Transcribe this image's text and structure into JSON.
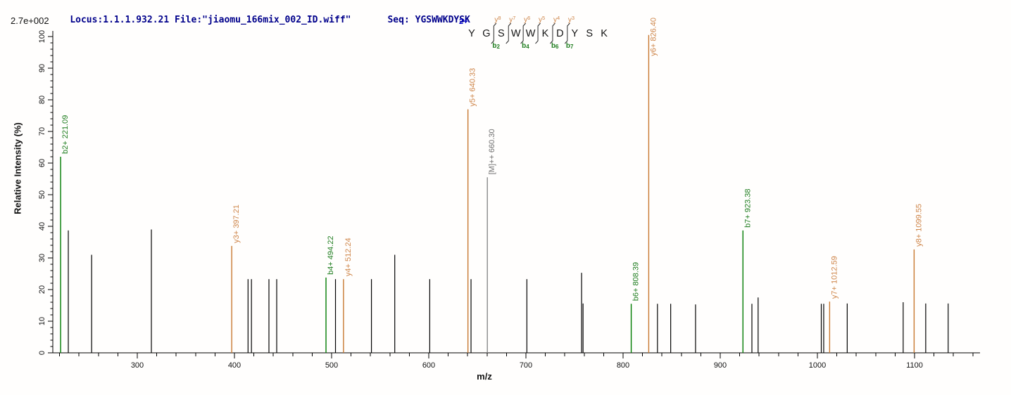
{
  "header": {
    "locus_file": "Locus:1.1.1.932.21 File:\"jiaomu_166mix_002_ID.wiff\"",
    "seq": "Seq: YGSWWKDYSK"
  },
  "annotation": {
    "charge": "2+",
    "sequence": "YGSWWKDYSK",
    "cleavages": [
      {
        "after": 1,
        "y": "y8",
        "b": "b2"
      },
      {
        "after": 2,
        "y": "y7"
      },
      {
        "after": 3,
        "y": "y6",
        "b": "b4"
      },
      {
        "after": 4,
        "y": "y5"
      },
      {
        "after": 5,
        "y": "y4",
        "b": "b6"
      },
      {
        "after": 6,
        "y": "y3",
        "b": "b7"
      }
    ]
  },
  "chart_data": {
    "type": "bar",
    "subtype": "ms2-fragmentation-spectrum",
    "title": "",
    "xlabel": "m/z",
    "ylabel": "Relative  Intensity (%)",
    "max_intensity_label": "2.7e+002",
    "xlim": [
      212,
      1166
    ],
    "ylim": [
      0,
      100
    ],
    "x_major_ticks": [
      300,
      400,
      500,
      600,
      700,
      800,
      900,
      1000,
      1100
    ],
    "x_minor_tick_step": 20,
    "y_major_tick_step": 10,
    "y_minor_tick_step": 2,
    "grid": false,
    "legend": false,
    "labeled_peaks": [
      {
        "mz": 221.09,
        "intensity": 62.0,
        "series": "b",
        "label": "b2+ 221.09"
      },
      {
        "mz": 397.21,
        "intensity": 33.8,
        "series": "y",
        "label": "y3+ 397.21"
      },
      {
        "mz": 494.22,
        "intensity": 23.8,
        "series": "b",
        "label": "b4+ 494.22"
      },
      {
        "mz": 512.24,
        "intensity": 23.3,
        "series": "y",
        "label": "y4+ 512.24"
      },
      {
        "mz": 640.33,
        "intensity": 77.0,
        "series": "y",
        "label": "y5+ 640.33"
      },
      {
        "mz": 660.3,
        "intensity": 55.5,
        "series": "precursor",
        "label": "[M]++ 660.30"
      },
      {
        "mz": 808.39,
        "intensity": 15.5,
        "series": "b",
        "label": "b6+ 808.39"
      },
      {
        "mz": 826.4,
        "intensity": 100.5,
        "series": "y",
        "label": "y6+ 826.40"
      },
      {
        "mz": 923.38,
        "intensity": 38.7,
        "series": "b",
        "label": "b7+ 923.38"
      },
      {
        "mz": 1012.59,
        "intensity": 16.2,
        "series": "y",
        "label": "y7+ 1012.59"
      },
      {
        "mz": 1099.55,
        "intensity": 32.7,
        "series": "y",
        "label": "y8+ 1099.55"
      }
    ],
    "unlabeled_peaks": [
      [
        229.0,
        38.7
      ],
      [
        253.0,
        31.0
      ],
      [
        314.5,
        39.0
      ],
      [
        414.0,
        23.3
      ],
      [
        417.5,
        23.3
      ],
      [
        435.5,
        23.3
      ],
      [
        443.5,
        23.3
      ],
      [
        504.0,
        23.3
      ],
      [
        541.0,
        23.3
      ],
      [
        565.0,
        31.0
      ],
      [
        601.0,
        23.3
      ],
      [
        643.5,
        23.3
      ],
      [
        701.0,
        23.3
      ],
      [
        757.3,
        25.3
      ],
      [
        758.8,
        15.6
      ],
      [
        835.4,
        15.5
      ],
      [
        849.0,
        15.5
      ],
      [
        874.6,
        15.3
      ],
      [
        932.6,
        15.5
      ],
      [
        939.0,
        17.5
      ],
      [
        1004.0,
        15.5
      ],
      [
        1006.5,
        15.5
      ],
      [
        1030.7,
        15.6
      ],
      [
        1088.3,
        16.0
      ],
      [
        1111.5,
        15.6
      ],
      [
        1134.6,
        15.6
      ]
    ],
    "colors": {
      "b_ion": "#007B00",
      "b_label": "#1F7D1F",
      "y_ion": "#C87830",
      "y_label": "#CE8549",
      "precursor": "#8A8A8A",
      "precursor_label": "#6F6F6F",
      "peak": "#000000",
      "axis": "#000000",
      "header_blue": "#00008B",
      "charge_blue": "#0000C8"
    }
  }
}
